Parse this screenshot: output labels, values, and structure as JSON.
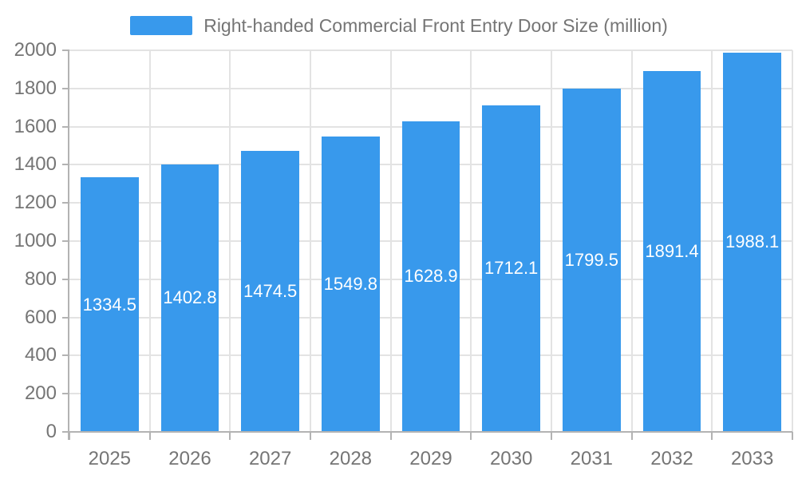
{
  "chart_data": {
    "type": "bar",
    "title": "Right-handed Commercial Front Entry Door Size (million)",
    "legend_entries": [
      "Right-handed Commercial Front Entry Door Size (million)"
    ],
    "legend_position": "top",
    "categories": [
      "2025",
      "2026",
      "2027",
      "2028",
      "2029",
      "2030",
      "2031",
      "2032",
      "2033"
    ],
    "series": [
      {
        "name": "Right-handed Commercial Front Entry Door Size (million)",
        "values": [
          1334.5,
          1402.8,
          1474.5,
          1549.8,
          1628.9,
          1712.1,
          1799.5,
          1891.4,
          1988.1
        ]
      }
    ],
    "value_labels": [
      "1334.5",
      "1402.8",
      "1474.5",
      "1549.8",
      "1628.9",
      "1712.1",
      "1799.5",
      "1891.4",
      "1988.1"
    ],
    "value_label_position": "inside-middle",
    "xlabel": "",
    "ylabel": "",
    "ylim": [
      0,
      2000
    ],
    "ytick_step": 200,
    "yticks": [
      "0",
      "200",
      "400",
      "600",
      "800",
      "1000",
      "1200",
      "1400",
      "1600",
      "1800",
      "2000"
    ],
    "grid": true,
    "colors": {
      "bar": "#3899ec",
      "grid": "#e3e3e3",
      "axis": "#b3b3b3",
      "axis_text": "#757575",
      "value_label": "#ffffff",
      "background": "#ffffff"
    }
  }
}
